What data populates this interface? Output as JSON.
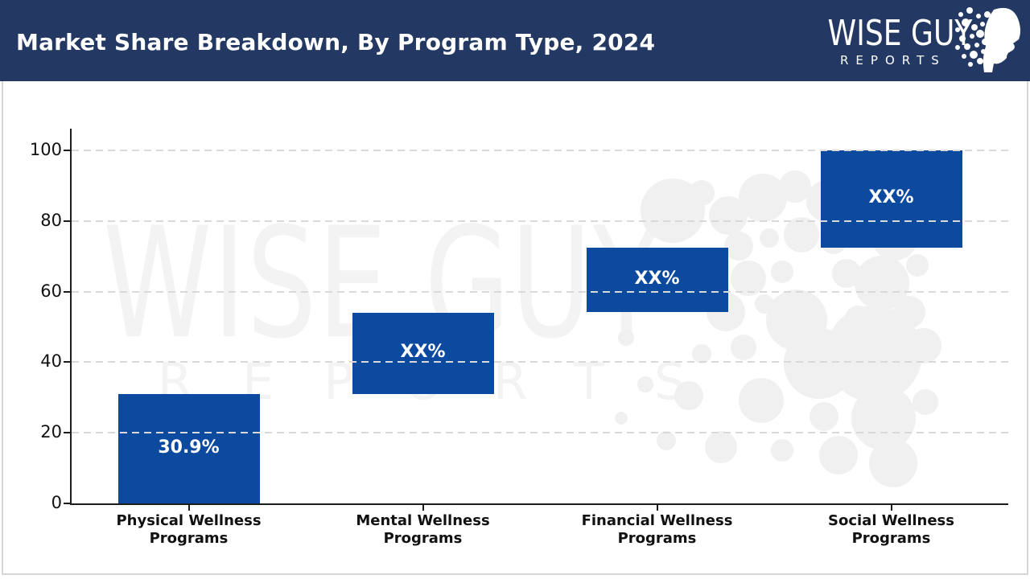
{
  "header": {
    "title": "Market Share Breakdown, By Program Type, 2024",
    "logo": {
      "line1": "WISE GUY",
      "line2": "REPORTS"
    }
  },
  "watermark": {
    "line1": "WISE GUY",
    "line2": "REPORTS"
  },
  "chart_data": {
    "type": "bar",
    "subtype": "waterfall",
    "title": "Market Share Breakdown, By Program Type, 2024",
    "categories": [
      "Physical Wellness Programs",
      "Mental Wellness Programs",
      "Financial Wellness Programs",
      "Social Wellness Programs"
    ],
    "segments": [
      {
        "category": "Physical Wellness Programs",
        "start": 0,
        "end": 30.9,
        "label": "30.9%"
      },
      {
        "category": "Mental Wellness Programs",
        "start": 30.9,
        "end": 54.1,
        "label": "XX%"
      },
      {
        "category": "Financial Wellness Programs",
        "start": 54.1,
        "end": 72.5,
        "label": "XX%"
      },
      {
        "category": "Social Wellness Programs",
        "start": 72.5,
        "end": 100,
        "label": "XX%"
      }
    ],
    "yticks": [
      0,
      20,
      40,
      60,
      80,
      100
    ],
    "ylim": [
      0,
      106
    ],
    "xlabel": "",
    "ylabel": "",
    "grid": {
      "horizontal": true,
      "style": "dashed"
    },
    "legend": "none",
    "colors": {
      "bar": "#0c4aa0",
      "bar_label": "#ffffff",
      "header_bg": "#233964",
      "grid": "#d9d9d9",
      "axis": "#1c1c1c",
      "watermark": "#f3f3f3"
    }
  }
}
